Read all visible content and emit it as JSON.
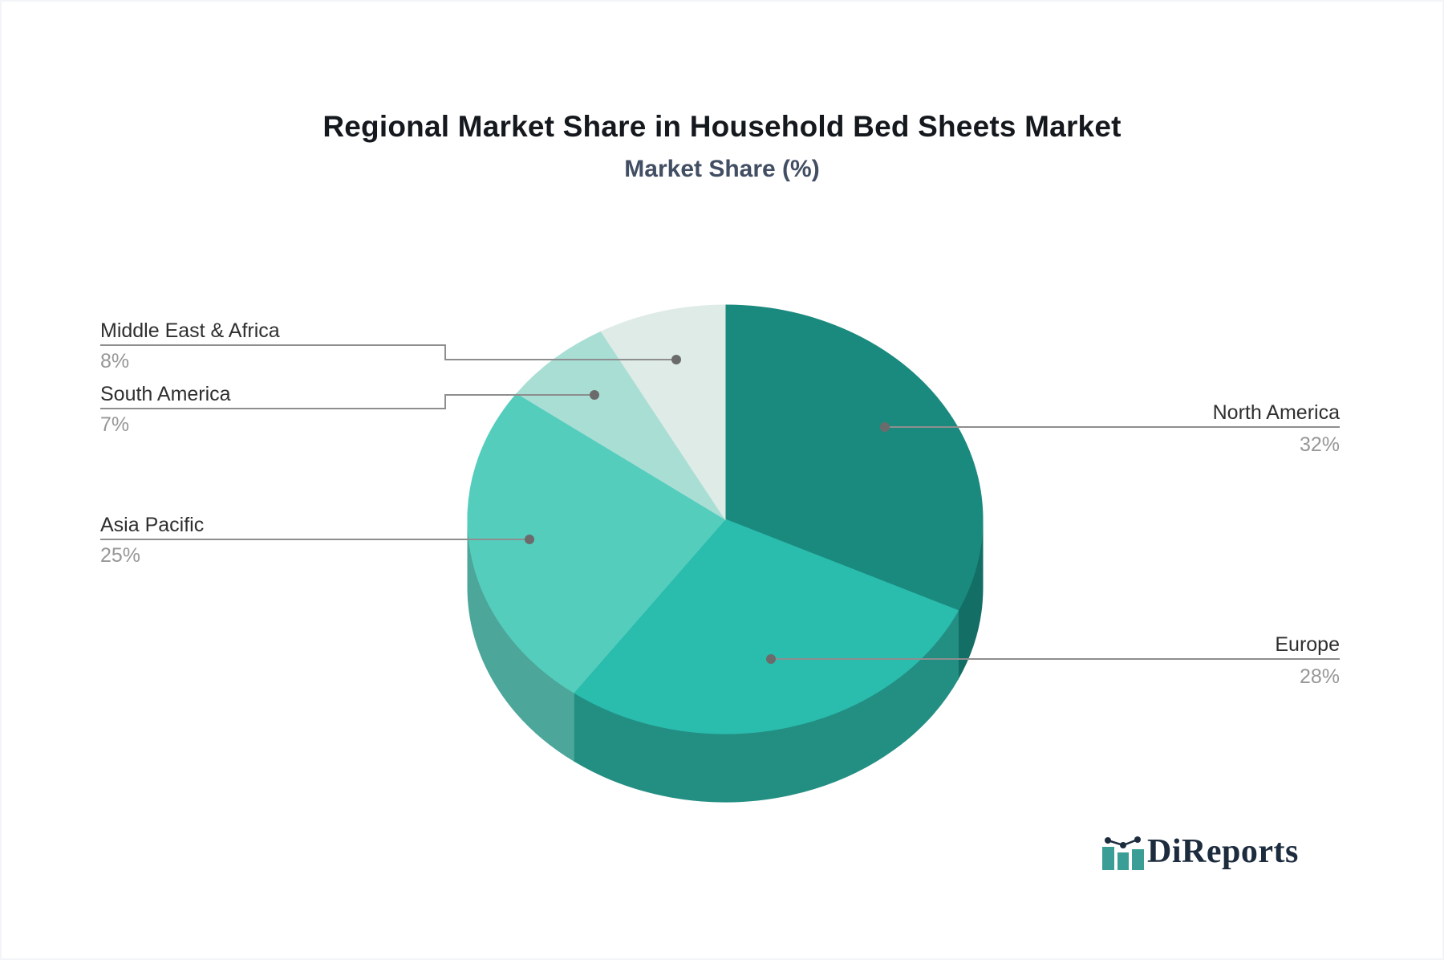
{
  "title": "Regional Market Share in Household Bed Sheets Market",
  "subtitle": "Market Share (%)",
  "brand": {
    "name": "DiReports",
    "icon": "bar-line-chart-icon"
  },
  "chart_data": {
    "type": "pie",
    "style": "3d",
    "title": "Regional Market Share in Household Bed Sheets Market",
    "subtitle": "Market Share (%)",
    "unit": "%",
    "start_angle_deg": 0,
    "direction": "clockwise",
    "legend": "none",
    "slices": [
      {
        "label": "North America",
        "value": 32,
        "value_label": "32%",
        "color": "#1a8a7e",
        "side_color": "#136e65"
      },
      {
        "label": "Europe",
        "value": 28,
        "value_label": "28%",
        "color": "#2abcad",
        "side_color": "#238f83"
      },
      {
        "label": "Asia Pacific",
        "value": 25,
        "value_label": "25%",
        "color": "#55cdbd",
        "side_color": "#4ca69a"
      },
      {
        "label": "South America",
        "value": 7,
        "value_label": "7%",
        "color": "#a9ded5",
        "side_color": "#8fc4bb"
      },
      {
        "label": "Middle East & Africa",
        "value": 8,
        "value_label": "8%",
        "color": "#deebe7",
        "side_color": "#c3d8d3"
      }
    ],
    "colors": {
      "leader_line": "#8e8e8e",
      "callout_dot": "#6b6b6b",
      "label_text": "#2f2f2f",
      "value_text": "#979797",
      "title_text": "#15191e",
      "subtitle_text": "#414e63",
      "brand_text": "#1c2b3d",
      "brand_icon": "#3a9e97"
    }
  }
}
